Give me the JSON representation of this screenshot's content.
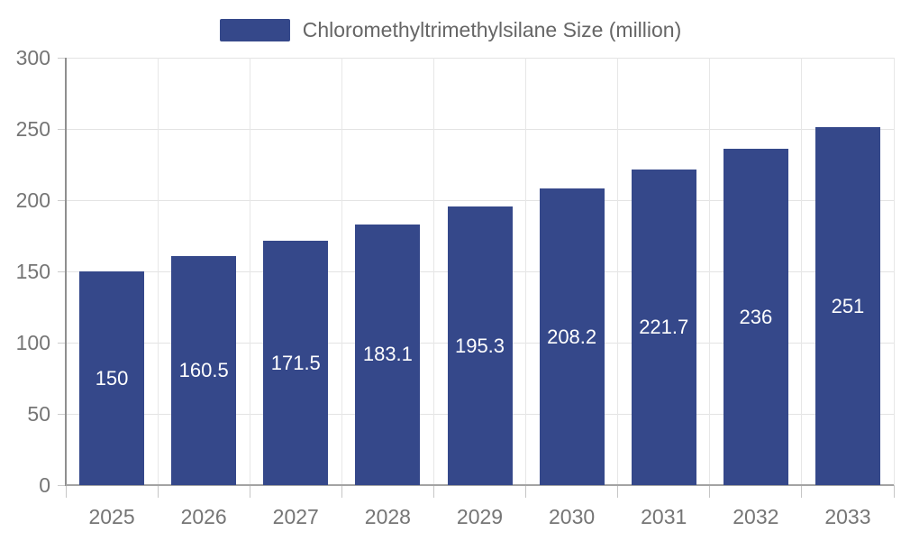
{
  "legend": {
    "label": "Chloromethyltrimethylsilane Size (million)",
    "swatch_color": "#35488a"
  },
  "chart_data": {
    "type": "bar",
    "title": "",
    "xlabel": "",
    "ylabel": "",
    "categories": [
      "2025",
      "2026",
      "2027",
      "2028",
      "2029",
      "2030",
      "2031",
      "2032",
      "2033"
    ],
    "series": [
      {
        "name": "Chloromethyltrimethylsilane Size (million)",
        "values": [
          150,
          160.5,
          171.5,
          183.1,
          195.3,
          208.2,
          221.7,
          236,
          251
        ]
      }
    ],
    "value_labels_shown": true,
    "ylim": [
      0,
      300
    ],
    "ytick_interval": 50,
    "ytick_labels": [
      "0",
      "50",
      "100",
      "150",
      "200",
      "250",
      "300"
    ],
    "grid": true,
    "legend_position": "top-center",
    "colors": {
      "bar": "#35488a",
      "value_label": "#ffffff",
      "grid_line": "#e3e3e3",
      "axis_line": "#999999",
      "tick_label": "#757575",
      "legend_text": "#666666",
      "background": "#ffffff"
    }
  }
}
